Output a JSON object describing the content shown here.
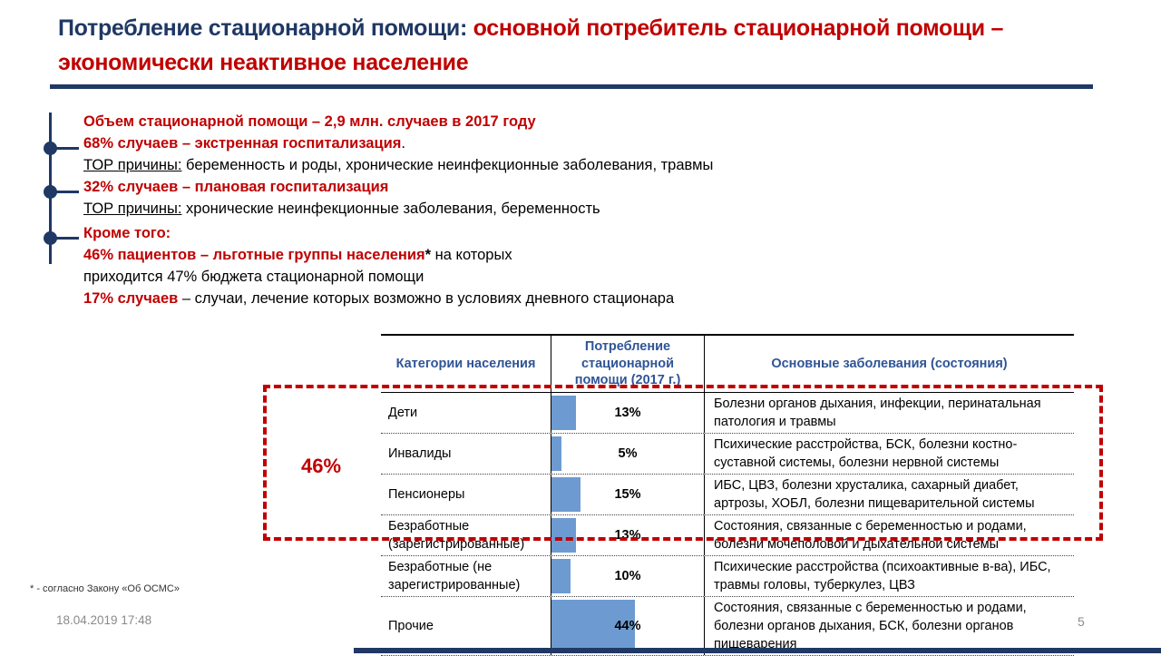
{
  "colors": {
    "navy": "#1F3864",
    "red": "#C00000",
    "bar_blue": "#6D9BD1",
    "header_blue": "#2F5496",
    "footer_gray": "#8a8a8a"
  },
  "title": {
    "navy": "Потребление стационарной помощи: ",
    "red_line1": "основной потребитель стационарной помощи –",
    "red_line2": "экономически неактивное население"
  },
  "info": {
    "volume": "Объем стационарной помощи – 2,9 млн. случаев в 2017 году",
    "emergency": "68% случаев – экстренная госпитализация",
    "emergency_period": ".",
    "top_label": "ТОР причины:",
    "emergency_causes": " беременность и роды, хронические неинфекционные заболевания, травмы",
    "planned": "32% случаев – плановая госпитализация",
    "planned_causes": " хронические неинфекционные заболевания, беременность",
    "besides": "Кроме того:",
    "benefit_red": "46% пациентов – льготные группы населения",
    "benefit_asterisk": "*",
    "benefit_rest": " на которых",
    "benefit_line2": "приходится 47% бюджета стационарной помощи",
    "daycare_red": "17% случаев",
    "daycare_rest": " – случаи, лечение которых возможно в условиях дневного стационара"
  },
  "highlight": {
    "label": "46%"
  },
  "table": {
    "headers": [
      "Категории населения",
      "Потребление стационарной помощи (2017 г.)",
      "Основные заболевания (состояния)"
    ],
    "rows": [
      {
        "category": "Дети",
        "percent": "13%",
        "value": 13,
        "diseases": "Болезни органов дыхания, инфекции, перинатальная патология и травмы"
      },
      {
        "category": "Инвалиды",
        "percent": "5%",
        "value": 5,
        "diseases": "Психические расстройства, БСК, болезни костно-суставной системы, болезни нервной системы"
      },
      {
        "category": "Пенсионеры",
        "percent": "15%",
        "value": 15,
        "diseases": "ИБС, ЦВЗ, болезни хрусталика, сахарный диабет, артрозы, ХОБЛ, болезни пищеварительной системы"
      },
      {
        "category": "Безработные (зарегистрированные)",
        "percent": "13%",
        "value": 13,
        "diseases": "Состояния, связанные с беременностью и родами, болезни мочеполовой и дыхательной системы"
      },
      {
        "category": "Безработные (не зарегистрированные)",
        "percent": "10%",
        "value": 10,
        "diseases": "Психические расстройства (психоактивные в-ва), ИБС, травмы головы, туберкулез, ЦВЗ"
      },
      {
        "category": "Прочие",
        "percent": "44%",
        "value": 44,
        "diseases": "Состояния, связанные с беременностью и родами, болезни органов дыхания, БСК, болезни органов пищеварения"
      }
    ]
  },
  "chart_data": {
    "type": "bar",
    "categories": [
      "Дети",
      "Инвалиды",
      "Пенсионеры",
      "Безработные (зарегистрированные)",
      "Безработные (не зарегистрированные)",
      "Прочие"
    ],
    "values": [
      13,
      5,
      15,
      13,
      10,
      44
    ],
    "title": "Потребление стационарной помощи (2017 г.)",
    "xlabel": "",
    "ylabel": "",
    "unit": "%"
  },
  "footnote": {
    "text": "* - согласно Закону «Об ОСМС»"
  },
  "footer": {
    "datetime": "18.04.2019  17:48",
    "page": "5"
  }
}
